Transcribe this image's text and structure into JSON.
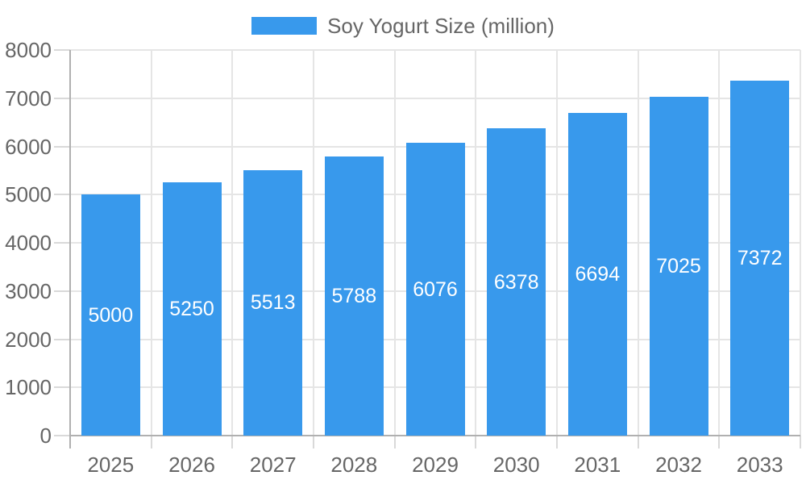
{
  "chart_data": {
    "type": "bar",
    "title": "Soy Yogurt Size (million)",
    "legend": {
      "label": "Soy Yogurt Size (million)",
      "position": "top"
    },
    "categories": [
      "2025",
      "2026",
      "2027",
      "2028",
      "2029",
      "2030",
      "2031",
      "2032",
      "2033"
    ],
    "series": [
      {
        "name": "Soy Yogurt Size (million)",
        "values": [
          5000,
          5250,
          5513,
          5788,
          6076,
          6378,
          6694,
          7025,
          7372
        ]
      }
    ],
    "value_labels": [
      "5000",
      "5250",
      "5513",
      "5788",
      "6076",
      "6378",
      "6694",
      "7025",
      "7372"
    ],
    "xlabel": "",
    "ylabel": "",
    "ylim": [
      0,
      8000
    ],
    "ytick_step": 1000,
    "yticks": [
      0,
      1000,
      2000,
      3000,
      4000,
      5000,
      6000,
      7000,
      8000
    ],
    "grid": true,
    "colors": {
      "bar": "#3899EC",
      "value_label_text": "#ffffff",
      "axis_text": "#666666",
      "gridline": "#e5e5e5",
      "axis_line": "#b0b0b0",
      "tick": "#d9d9d9",
      "background": "#ffffff"
    }
  }
}
